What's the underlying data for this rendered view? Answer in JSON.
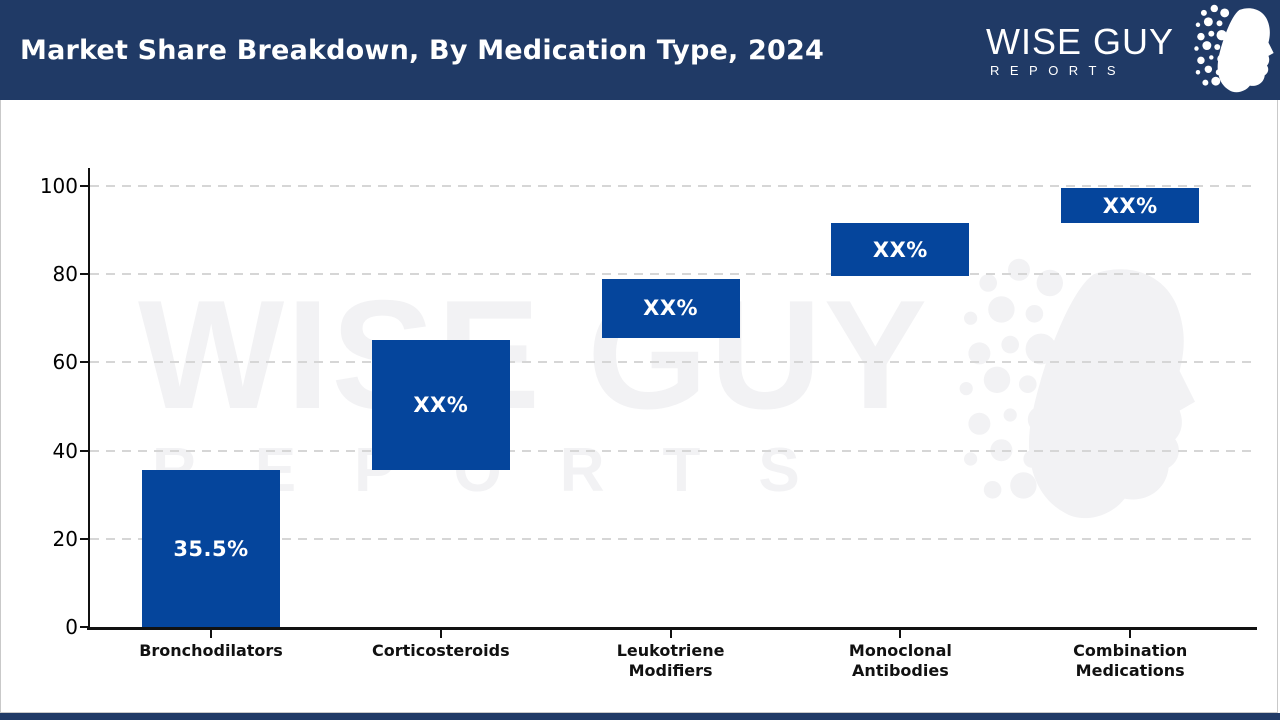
{
  "header": {
    "title": "Market Share Breakdown, By Medication Type, 2024",
    "logo": {
      "name": "WISE GUY",
      "tagline": "REPORTS"
    }
  },
  "watermark": {
    "line1": "WISE GUY",
    "line2": "REPORTS"
  },
  "footer": {},
  "colors": {
    "header_bg": "#203a66",
    "bar": "#05459c",
    "bar_label": "#ffffff",
    "grid": "#d6d6d6",
    "axis": "#111111",
    "watermark": "#f2f2f4",
    "border": "#c9c9c9"
  },
  "chart_data": {
    "type": "bar",
    "subtype": "waterfall",
    "title": "Market Share Breakdown, By Medication Type, 2024",
    "categories": [
      "Bronchodilators",
      "Corticosteroids",
      "Leukotriene Modifiers",
      "Monoclonal Antibodies",
      "Combination Medications"
    ],
    "segments": [
      {
        "category": "Bronchodilators",
        "start": 0,
        "end": 35.5,
        "label": "35.5%"
      },
      {
        "category": "Corticosteroids",
        "start": 35.5,
        "end": 65,
        "label": "XX%"
      },
      {
        "category": "Leukotriene Modifiers",
        "start": 65.5,
        "end": 79,
        "label": "XX%"
      },
      {
        "category": "Monoclonal Antibodies",
        "start": 79.5,
        "end": 91.5,
        "label": "XX%"
      },
      {
        "category": "Combination Medications",
        "start": 91.5,
        "end": 99.5,
        "label": "XX%"
      }
    ],
    "yticks": [
      0,
      20,
      40,
      60,
      80,
      100
    ],
    "ylim": [
      0,
      104
    ],
    "xlabel": "",
    "ylabel": "",
    "grid": "horizontal-dashed",
    "legend": "none"
  }
}
